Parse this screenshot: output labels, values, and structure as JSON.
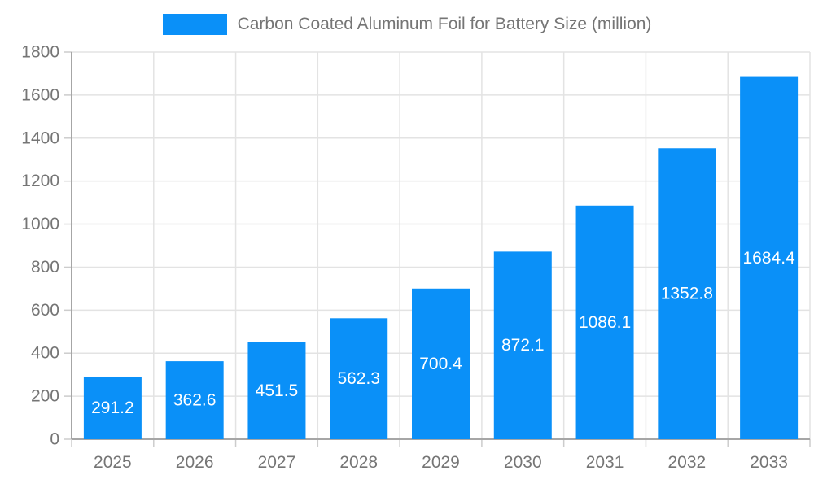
{
  "chart_data": {
    "type": "bar",
    "title": "Carbon Coated Aluminum Foil for Battery Size (million)",
    "series_name": "Carbon Coated Aluminum Foil for Battery Size (million)",
    "categories": [
      "2025",
      "2026",
      "2027",
      "2028",
      "2029",
      "2030",
      "2031",
      "2032",
      "2033"
    ],
    "values": [
      291.2,
      362.6,
      451.5,
      562.3,
      700.4,
      872.1,
      1086.1,
      1352.8,
      1684.4
    ],
    "value_labels": [
      "291.2",
      "362.6",
      "451.5",
      "562.3",
      "700.4",
      "872.1",
      "1086.1",
      "1352.8",
      "1684.4"
    ],
    "xlabel": "",
    "ylabel": "",
    "ylim": [
      0,
      1800
    ],
    "ytick_interval": 200,
    "ytick_labels": [
      "0",
      "200",
      "400",
      "600",
      "800",
      "1000",
      "1200",
      "1400",
      "1600",
      "1800"
    ],
    "grid": true,
    "legend_position": "top-center",
    "colors": {
      "bar": "#0a90f8",
      "bar_value_text": "#ffffff",
      "axis_line": "#a6a6a6",
      "tick_line": "#cccccc",
      "grid_line": "#e3e3e3",
      "tick_text": "#757575",
      "legend_text": "#757575",
      "background": "#ffffff"
    }
  }
}
